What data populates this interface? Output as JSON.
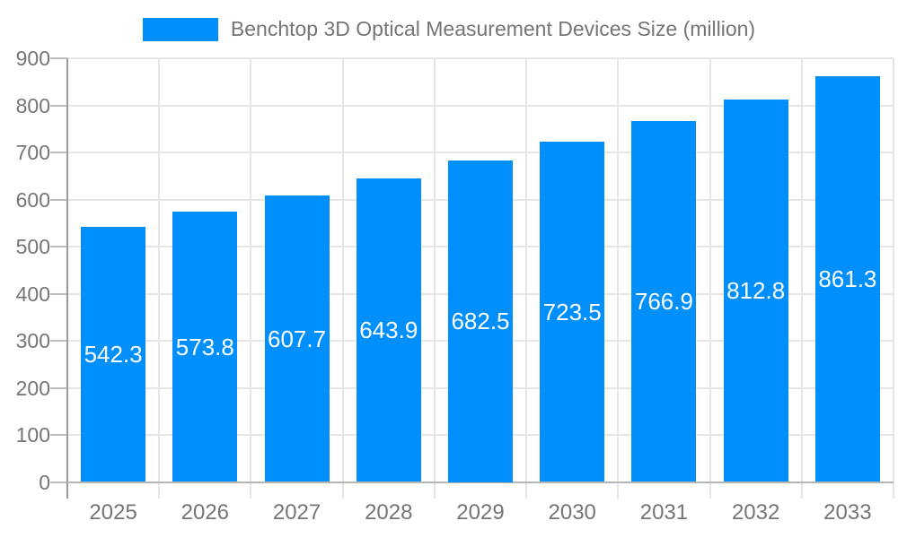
{
  "chart_data": {
    "type": "bar",
    "title": "Benchtop 3D Optical Measurement Devices Size (million)",
    "series": [
      {
        "name": "Benchtop 3D Optical Measurement Devices Size (million)",
        "values": [
          542.3,
          573.8,
          607.7,
          643.9,
          682.5,
          723.5,
          766.9,
          812.8,
          861.3
        ]
      }
    ],
    "categories": [
      "2025",
      "2026",
      "2027",
      "2028",
      "2029",
      "2030",
      "2031",
      "2032",
      "2033"
    ],
    "value_labels": [
      "542.3",
      "573.8",
      "607.7",
      "643.9",
      "682.5",
      "723.5",
      "766.9",
      "812.8",
      "861.3"
    ],
    "xlabel": "",
    "ylabel": "",
    "ylim": [
      0,
      900
    ],
    "ytick_step": 100,
    "yticks": [
      0,
      100,
      200,
      300,
      400,
      500,
      600,
      700,
      800,
      900
    ],
    "grid": true,
    "legend_position": "top",
    "colors": {
      "bar": "#008FFB",
      "bar_value_text": "#ffffff",
      "axis_text": "#757575",
      "legend_text": "#757575",
      "gridline": "#e6e6e6",
      "y_axis_line": "#9a9a9a",
      "x_axis_line": "#b6b6b6",
      "tick": "#bdbdbd"
    }
  }
}
